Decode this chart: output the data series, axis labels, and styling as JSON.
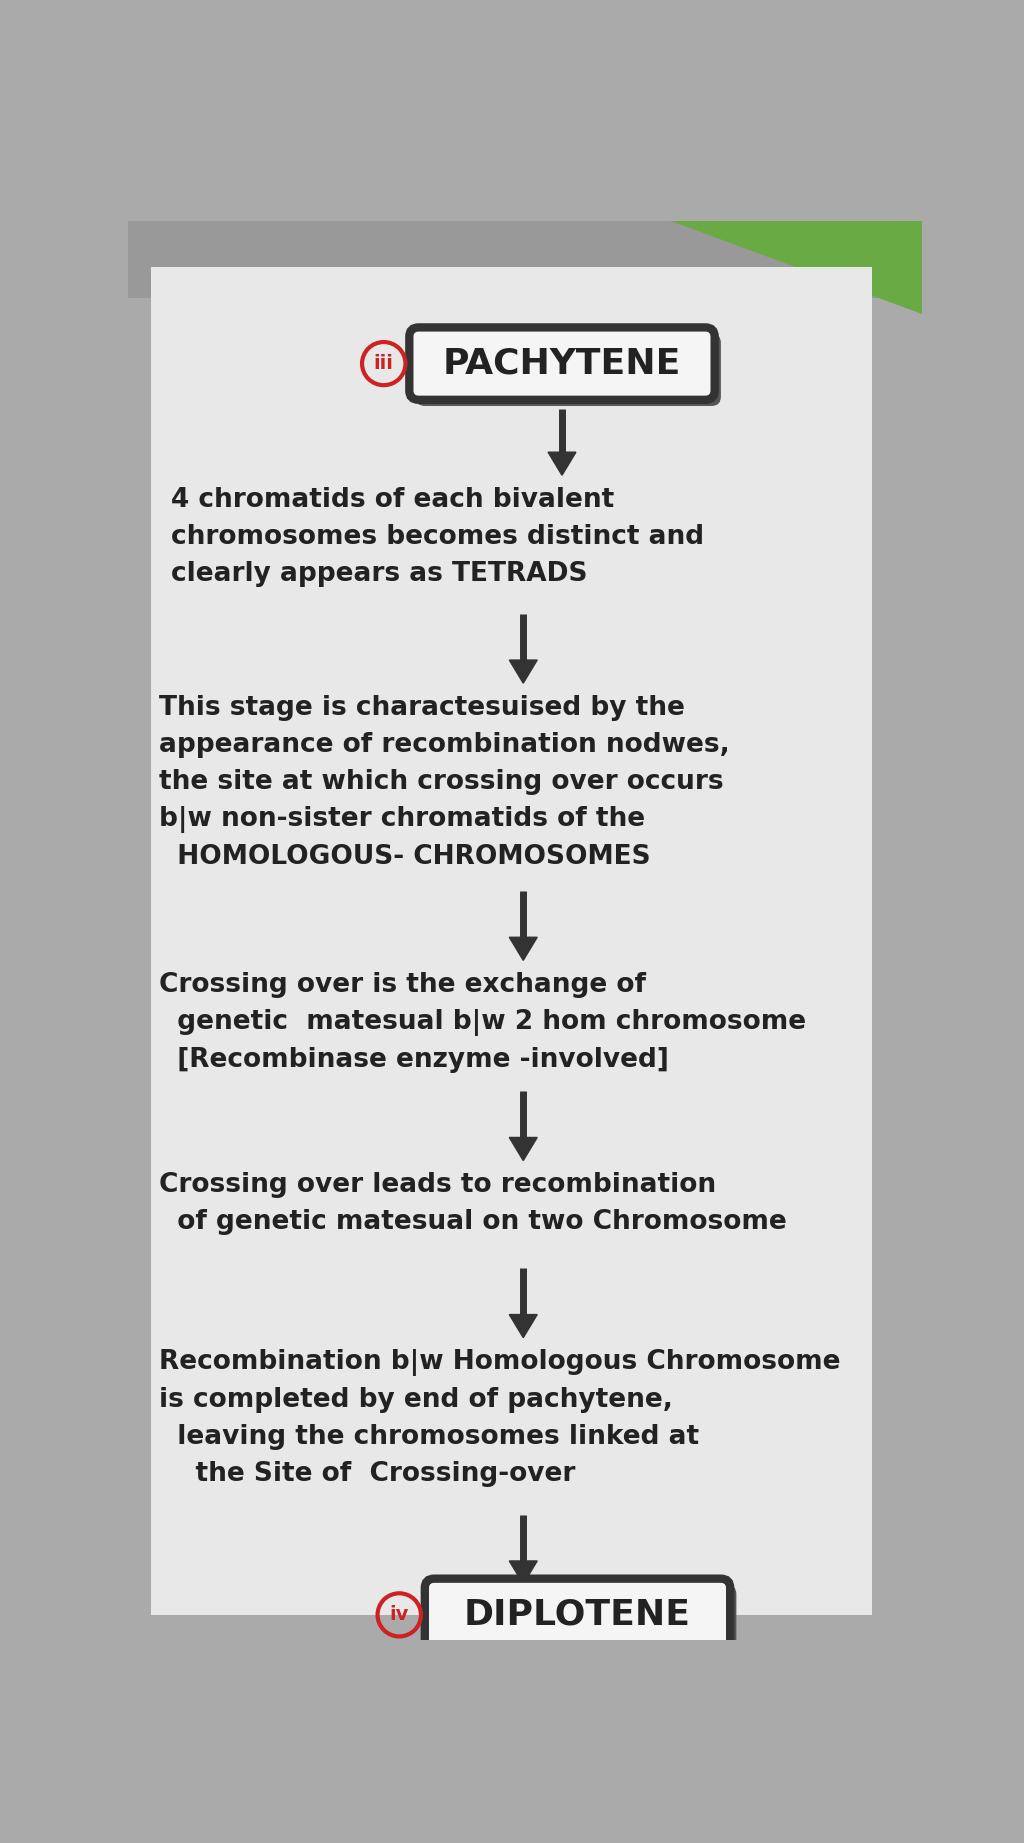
{
  "bg_top_color": "#b0b0b0",
  "bg_bottom_color": "#c8c8c8",
  "paper_color": "#e0e0e0",
  "paper_white": "#f0f0f0",
  "title_label": "iii",
  "title_text": "PACHYTENE",
  "bottom_label": "iv",
  "bottom_text": "DIPLOTENE",
  "text_color": "#222222",
  "shadow_color": "#555555",
  "arrow_color": "#333333",
  "box_fill": "#f5f5f5",
  "label_circle_color": "#cc2222",
  "fontsize_body": 19,
  "fontsize_title": 26,
  "block1_text": "4 chromatids of each bivalent\nchromosomes becomes distinct and\nclearly appears as TETRADS",
  "block2_text": "This stage is charactesuised by the\nappearance of recombination nodwes,\nthe site at which crossing over occurs\nb|w non-sister chromatids of the\n  HOMOLOGOUS- CHROMOSOMES",
  "block3_text": "Crossing over is the exchange of\n  genetic  matesual b|w 2 hom chromosome\n  [Recombinase enzyme -involved]",
  "block4_text": "Crossing over leads to recombination\n  of genetic matesual on two Chromosome",
  "block5_text": "Recombination b|w Homologous Chromosome\nis completed by end of pachytene,\n  leaving the chromosomes linked at\n    the Site of  Crossing-over"
}
